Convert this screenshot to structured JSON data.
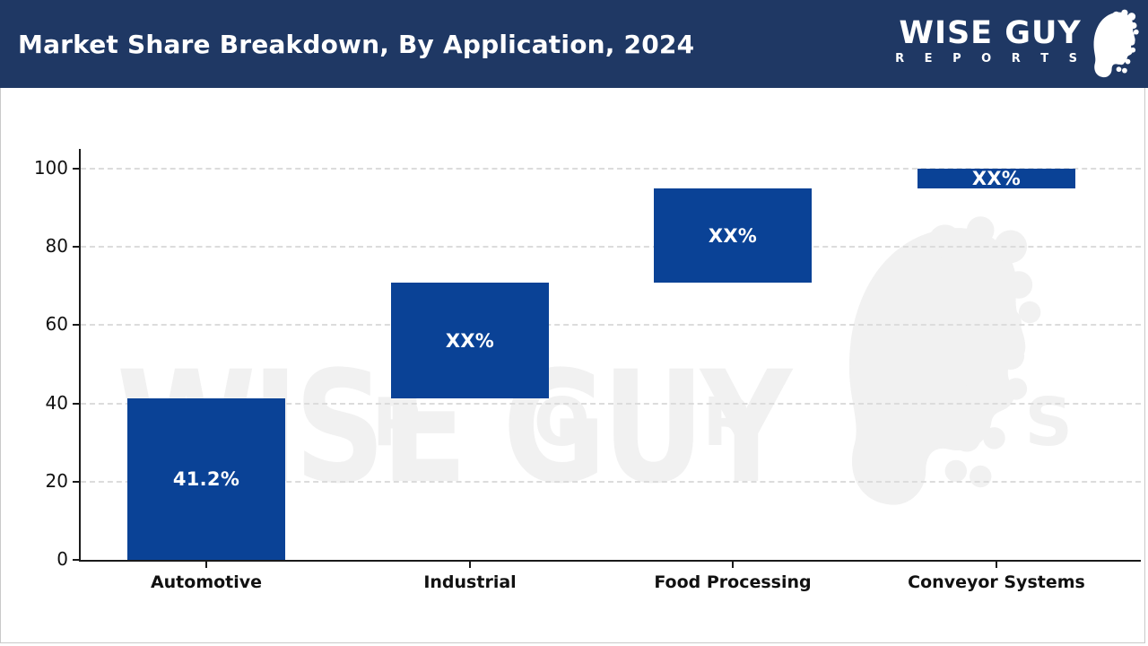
{
  "header": {
    "title": "Market Share Breakdown, By Application, 2024",
    "bg_color": "#1f3864",
    "text_color": "#ffffff",
    "brand": {
      "line1": "WISE GUY",
      "line2": "R E P O R T S"
    }
  },
  "watermark": {
    "line1": "WISE GUY",
    "line2": "P O R T S"
  },
  "chart_data": {
    "type": "bar",
    "subtype": "waterfall",
    "title": "Market Share Breakdown, By Application, 2024",
    "categories": [
      "Automotive",
      "Industrial",
      "Food Processing",
      "Conveyor Systems"
    ],
    "segments": [
      {
        "category": "Automotive",
        "start": 0,
        "end": 41.2,
        "label": "41.2%"
      },
      {
        "category": "Industrial",
        "start": 41.2,
        "end": 70.8,
        "label": "XX%"
      },
      {
        "category": "Food Processing",
        "start": 70.8,
        "end": 95.0,
        "label": "XX%"
      },
      {
        "category": "Conveyor Systems",
        "start": 95.0,
        "end": 100.0,
        "label": "XX%"
      }
    ],
    "y_ticks": [
      0,
      20,
      40,
      60,
      80,
      100
    ],
    "ylim": [
      0,
      105
    ],
    "xlabel": "",
    "ylabel": "",
    "grid": "horizontal-dashed",
    "legend": "none",
    "bar_color": "#0a4296",
    "grid_color": "#dcdcdc",
    "axis_color": "#1a1a1a",
    "label_color": "#111111",
    "bar_label_color": "#ffffff"
  }
}
